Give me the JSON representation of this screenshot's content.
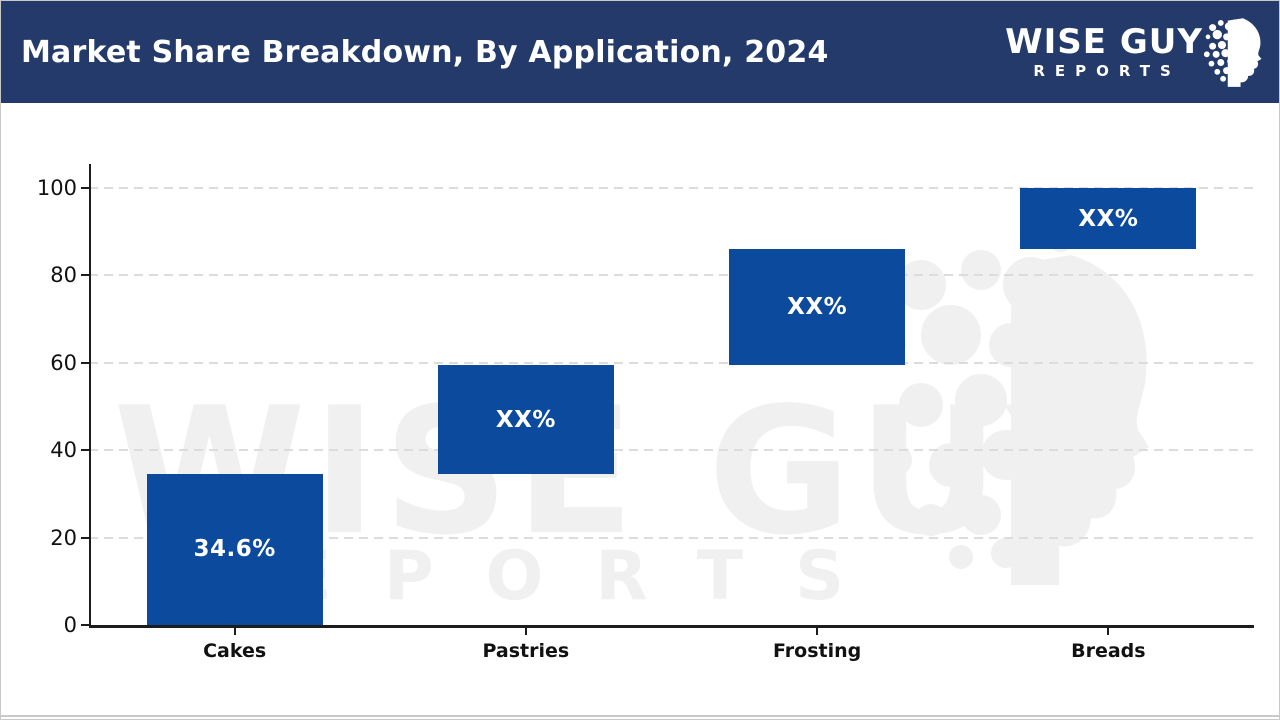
{
  "header": {
    "title": "Market Share Breakdown, By Application, 2024",
    "logo": {
      "brand": "WISE GUY",
      "sub": "REPORTS"
    }
  },
  "watermark": {
    "brand": "WISE GUY",
    "sub": "REPORTS"
  },
  "colors": {
    "header_bg": "#233a6b",
    "bar": "#0c4a9e",
    "watermark": "#f0f0f0",
    "axis": "#1c1c1c",
    "gridline": "#dcdcdc",
    "value_label": "#ffffff"
  },
  "chart_data": {
    "type": "bar",
    "subtype": "floating-waterfall",
    "title": "Market Share Breakdown, By Application, 2024",
    "categories": [
      "Cakes",
      "Pastries",
      "Frosting",
      "Breads"
    ],
    "bars": [
      {
        "category": "Cakes",
        "start": 0,
        "end": 34.6,
        "label": "34.6%"
      },
      {
        "category": "Pastries",
        "start": 34.6,
        "end": 59.4,
        "label": "XX%"
      },
      {
        "category": "Frosting",
        "start": 59.4,
        "end": 86.0,
        "label": "XX%"
      },
      {
        "category": "Breads",
        "start": 86.0,
        "end": 100,
        "label": "XX%"
      }
    ],
    "xlabel": "",
    "ylabel": "",
    "ylim": [
      0,
      105.5
    ],
    "yticks": [
      0,
      20,
      40,
      60,
      80,
      100
    ],
    "grid": "dashed-horizontal",
    "legend": "none"
  }
}
